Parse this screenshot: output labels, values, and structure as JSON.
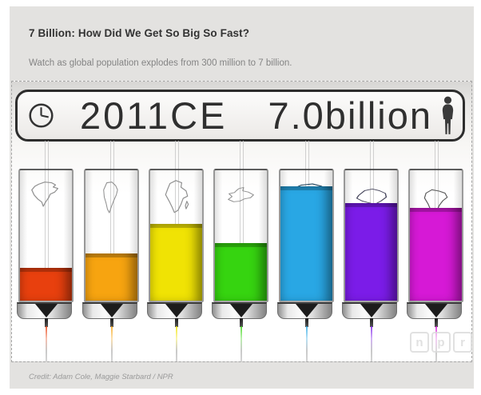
{
  "article": {
    "title": "7 Billion: How Did We Get So Big So Fast?",
    "subtitle": "Watch as global population explodes from 300 million to 7 billion.",
    "credit": "Credit: Adam Cole, Maggie Starbard / NPR"
  },
  "visualization": {
    "year_label": "2011CE",
    "population_label": "7.0billion",
    "clock_icon": "clock-icon",
    "person_icon": "person-silhouette-icon",
    "watermark_letters": [
      "n",
      "p",
      "r"
    ]
  },
  "colors": {
    "panel_bg": "#e3e2e0",
    "hud_border": "#2d2d2d",
    "text_dark": "#333333",
    "text_gray": "#848484"
  },
  "chart_data": {
    "type": "bar",
    "title": "7 Billion: How Did We Get So Big So Fast?",
    "subtitle": "Watch as global population explodes from 300 million to 7 billion.",
    "year": "2011CE",
    "total_population": "7.0billion",
    "categories": [
      "North America",
      "South America",
      "Africa",
      "Europe",
      "Asia",
      "China",
      "India"
    ],
    "series": [
      {
        "name": "glass_fill_fraction",
        "values": [
          0.25,
          0.36,
          0.59,
          0.44,
          0.88,
          0.75,
          0.71
        ]
      }
    ],
    "colors": [
      "#e8400e",
      "#f7a410",
      "#f0e304",
      "#36d410",
      "#29a7e4",
      "#7b1ce8",
      "#d619d6"
    ],
    "ylim": [
      0,
      1
    ],
    "legend": "none",
    "notes": "Each glass etched with its region outline; liquid level encodes population share, glasses drain/fill over time."
  }
}
